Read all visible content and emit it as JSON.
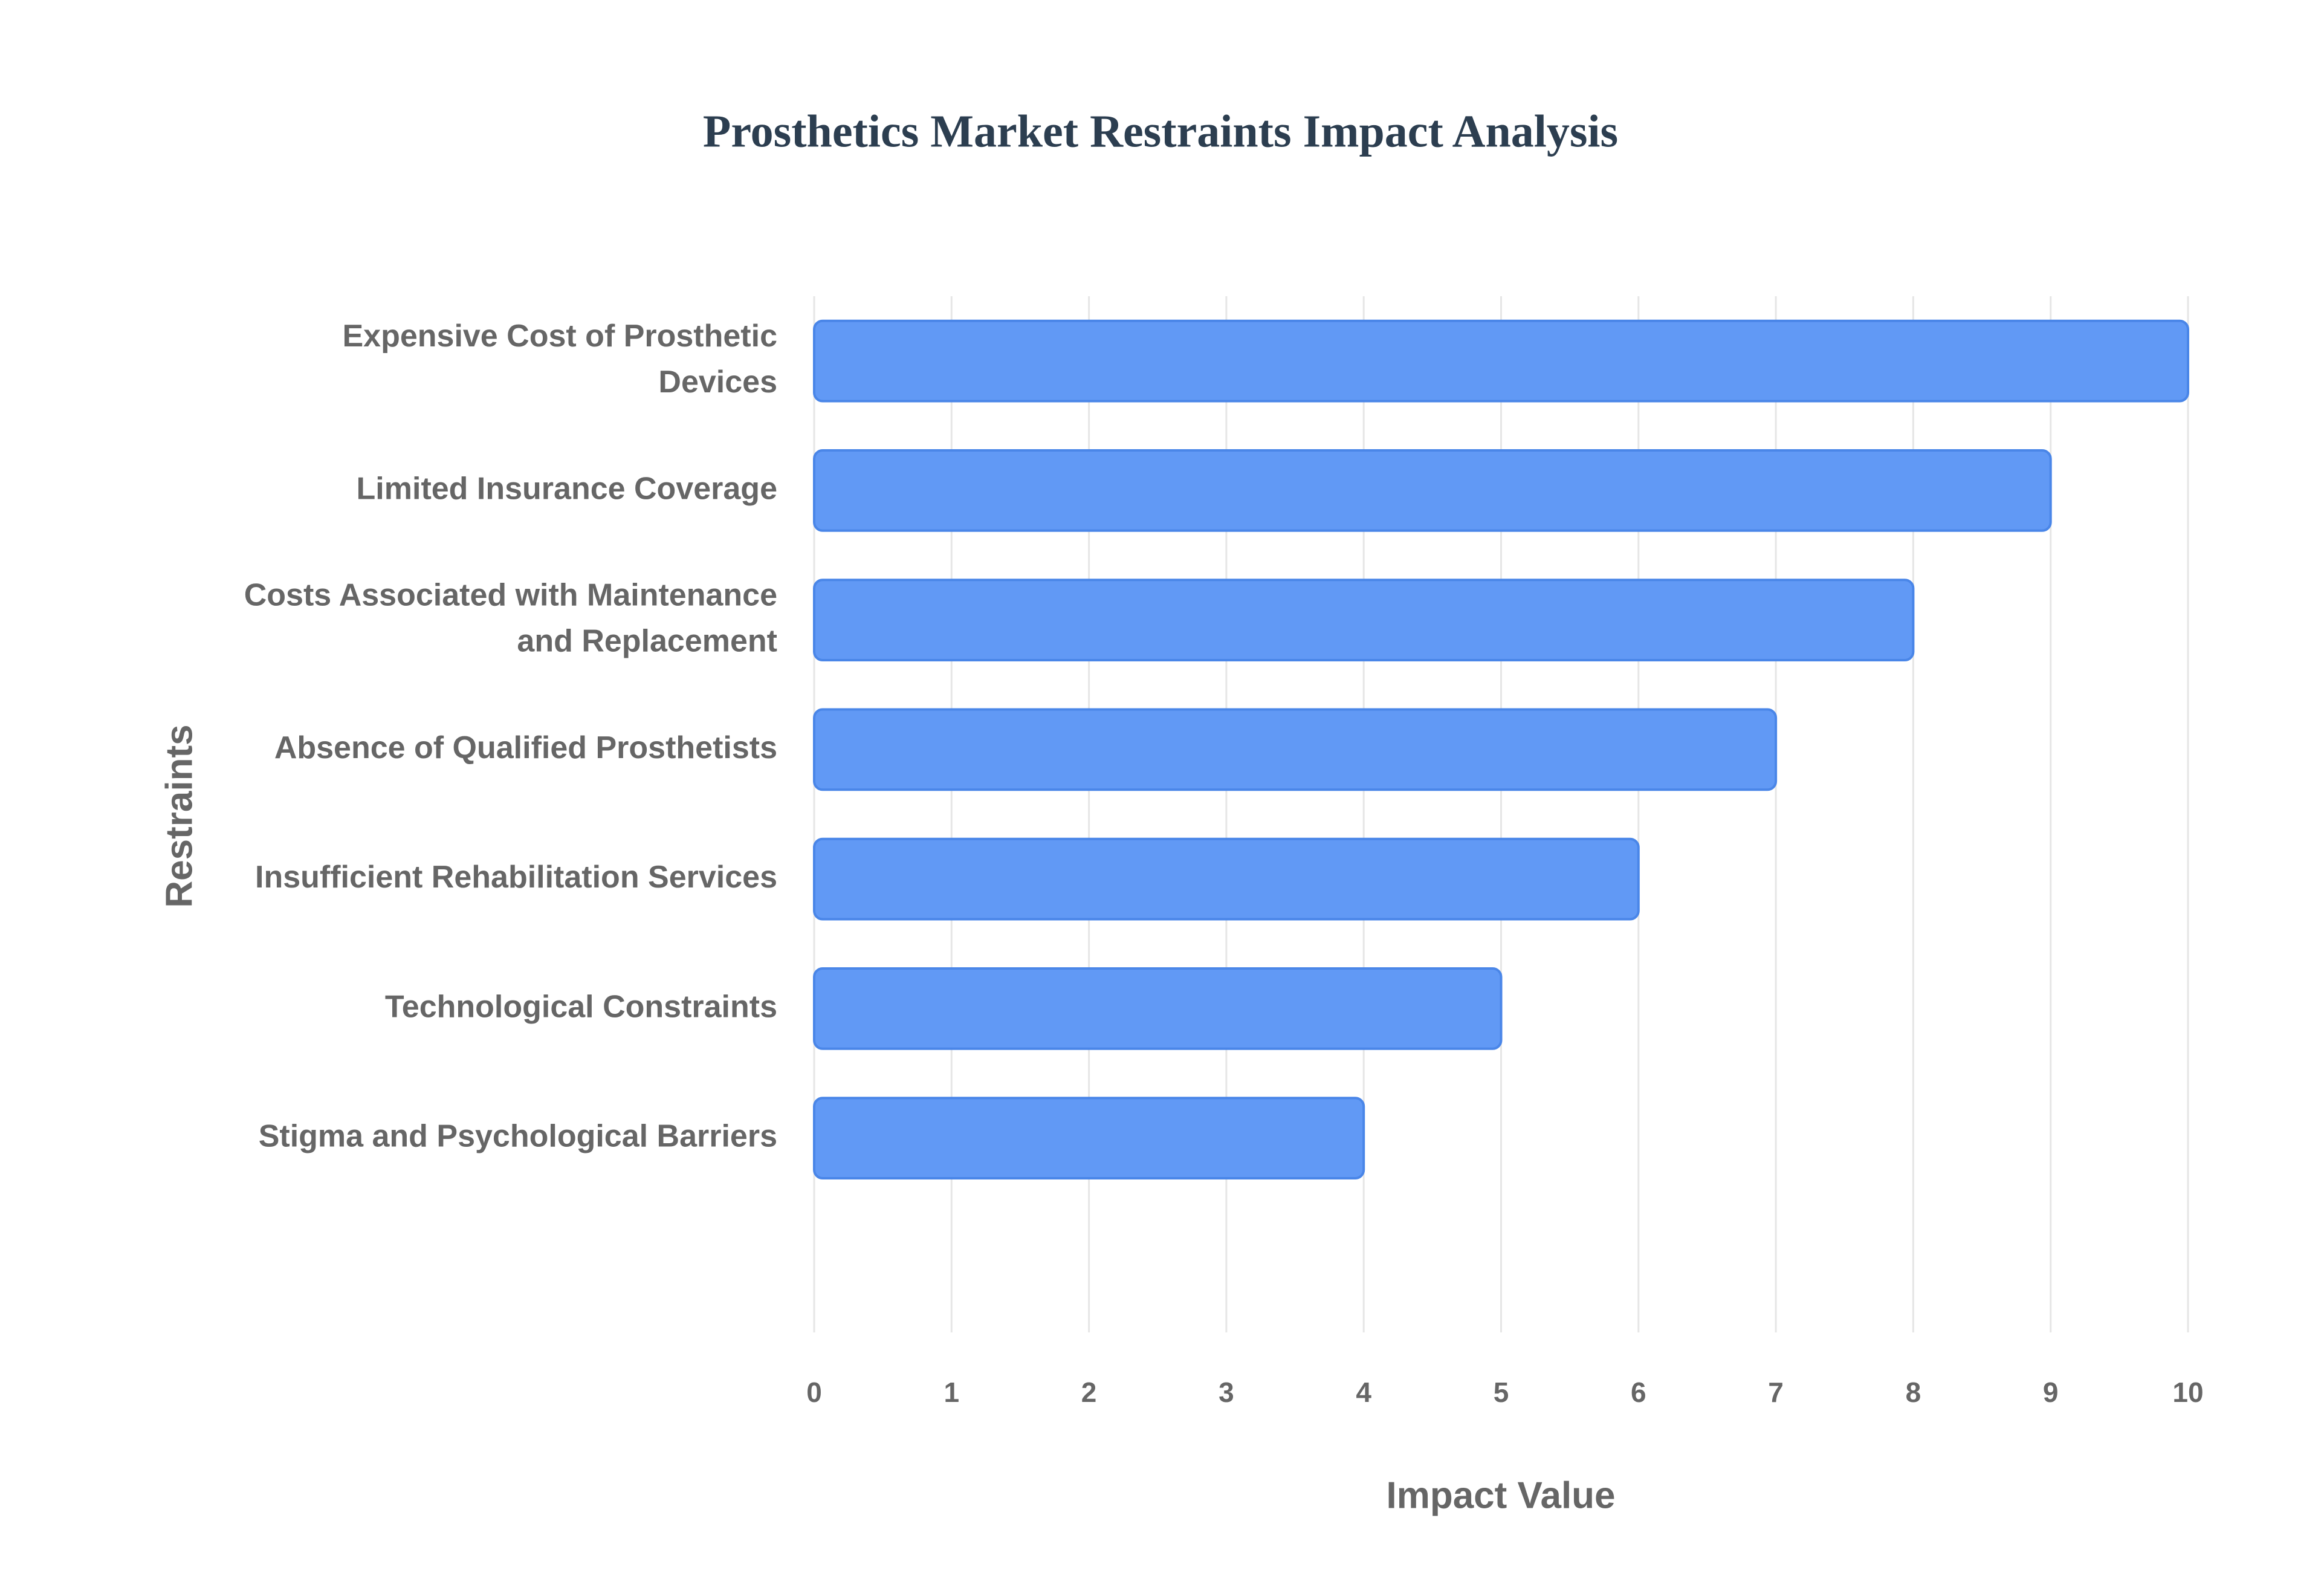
{
  "chart_data": {
    "type": "bar",
    "orientation": "horizontal",
    "title": "Prosthetics Market Restraints Impact Analysis",
    "categories": [
      "Expensive Cost of Prosthetic Devices",
      "Limited Insurance Coverage",
      "Costs Associated with Maintenance and Replacement",
      "Absence of Qualified Prosthetists",
      "Insufficient Rehabilitation Services",
      "Technological Constraints",
      "Stigma and Psychological Barriers"
    ],
    "values": [
      10,
      9,
      8,
      7,
      6,
      5,
      4
    ],
    "color": "#6199f5",
    "xlim": [
      0,
      10
    ],
    "xticks": [
      0,
      1,
      2,
      3,
      4,
      5,
      6,
      7,
      8,
      9,
      10
    ],
    "xlabel": "Impact Value",
    "ylabel": "Restraints",
    "grid": true
  }
}
